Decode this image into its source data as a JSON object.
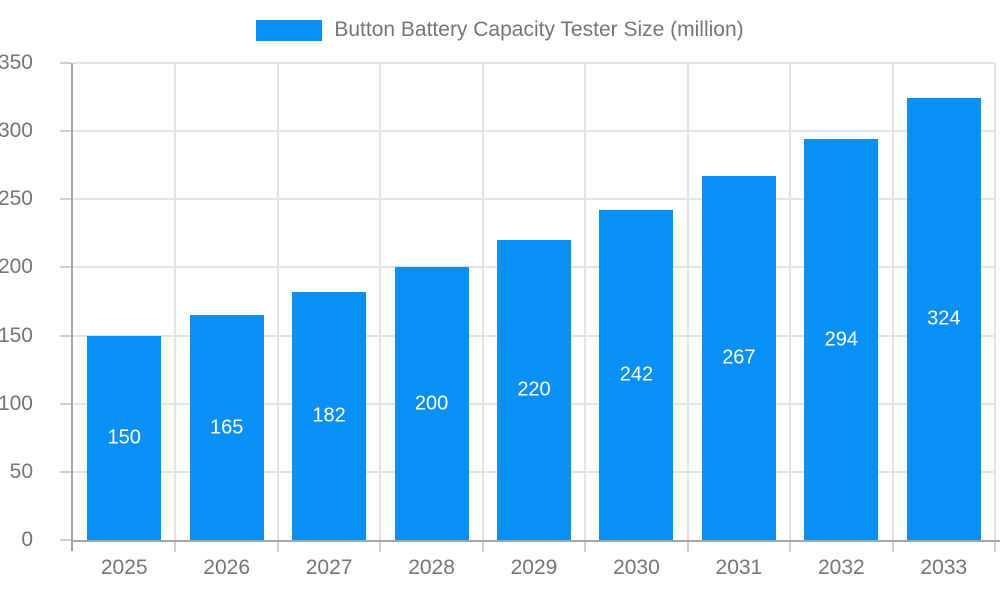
{
  "chart_data": {
    "type": "bar",
    "title": "Button Battery Capacity Tester Size (million)",
    "legend": [
      "Button Battery Capacity Tester Size (million)"
    ],
    "legend_position": "top",
    "categories": [
      "2025",
      "2026",
      "2027",
      "2028",
      "2029",
      "2030",
      "2031",
      "2032",
      "2033"
    ],
    "values": [
      150,
      165,
      182,
      200,
      220,
      242,
      267,
      294,
      324
    ],
    "value_labels_shown": true,
    "value_label_position": "inside-center",
    "xlabel": "",
    "ylabel": "",
    "ylim": [
      0,
      350
    ],
    "ytick_step": 50,
    "ytick_labels": [
      "0",
      "50",
      "100",
      "150",
      "200",
      "250",
      "300",
      "350"
    ],
    "grid": true,
    "colors": {
      "bar": "#0890f4",
      "axis_label": "#757575",
      "value_label": "#ffffff",
      "gridline": "#e4e4e4",
      "axis_line": "#a6a6a6",
      "tick": "#cfcfcf",
      "background": "#ffffff"
    }
  }
}
